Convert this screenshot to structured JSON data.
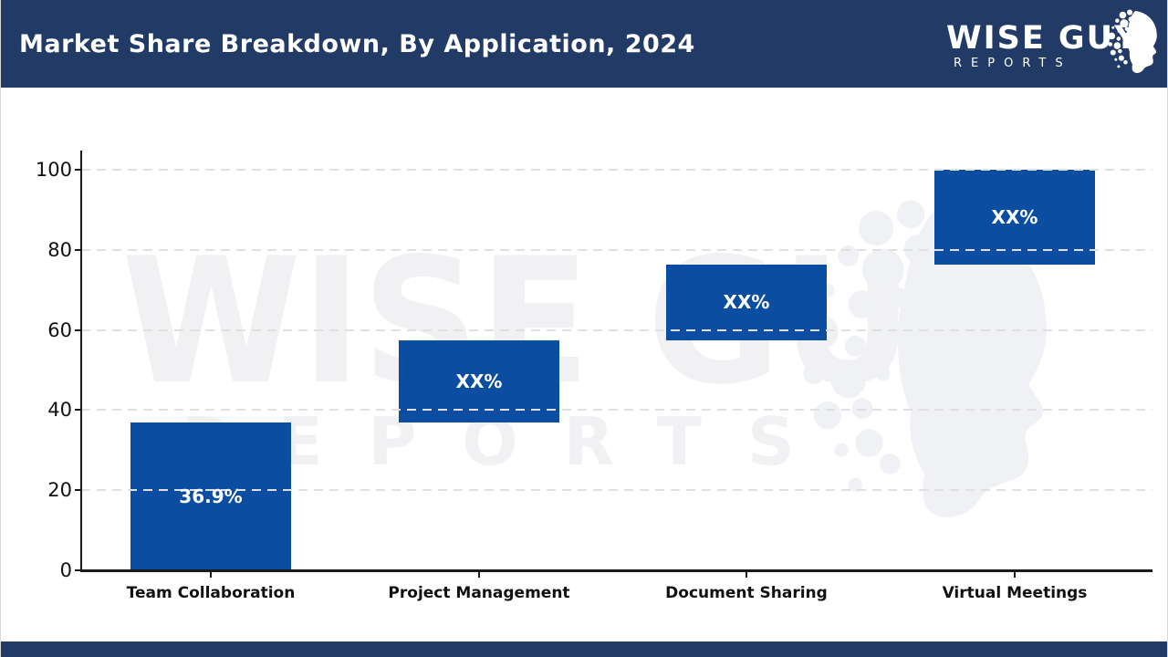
{
  "header": {
    "title": "Market Share Breakdown, By Application, 2024",
    "logo_line1": "WISE GUY",
    "logo_line2": "REPORTS"
  },
  "watermark": {
    "line1": "WISE GUY",
    "line2": "REPORTS"
  },
  "colors": {
    "header_bg": "#213a66",
    "footer_bg": "#213a66",
    "bar": "#0b4da0",
    "bar_label": "#ffffff",
    "grid": "#e0e0e0",
    "axis": "#1a1a1a",
    "watermark": "#f1f1f4"
  },
  "chart_data": {
    "type": "bar",
    "subtype": "floating-waterfall",
    "title": "Market Share Breakdown, By Application, 2024",
    "categories": [
      "Team Collaboration",
      "Project Management",
      "Document Sharing",
      "Virtual Meetings"
    ],
    "bars": [
      {
        "category": "Team Collaboration",
        "start": 0,
        "end": 36.9,
        "size": 36.9,
        "label": "36.9%"
      },
      {
        "category": "Project Management",
        "start": 36.9,
        "end": 57.5,
        "size": 20.6,
        "label": "XX%"
      },
      {
        "category": "Document Sharing",
        "start": 57.5,
        "end": 76.4,
        "size": 18.9,
        "label": "XX%"
      },
      {
        "category": "Virtual Meetings",
        "start": 76.4,
        "end": 100,
        "size": 23.6,
        "label": "XX%"
      }
    ],
    "xlabel": "",
    "ylabel": "",
    "ylim": [
      0,
      105
    ],
    "yticks": [
      0,
      20,
      40,
      60,
      80,
      100
    ],
    "grid": {
      "visible": true,
      "style": "dashed",
      "axis": "y"
    },
    "legend": false
  }
}
